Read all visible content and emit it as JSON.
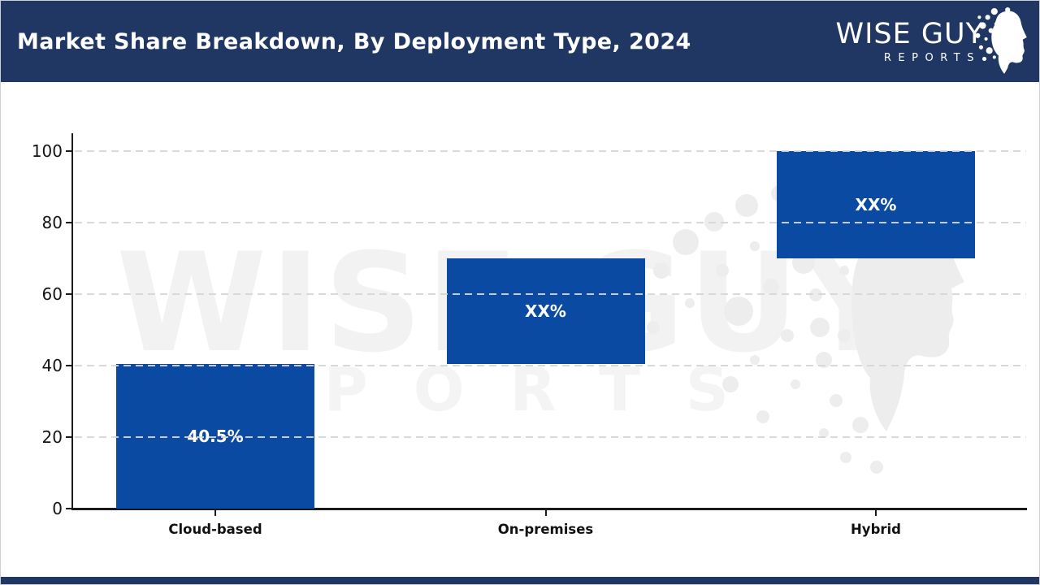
{
  "header": {
    "title": "Market Share Breakdown, By Deployment Type, 2024",
    "logo": {
      "name": "WISE GUY",
      "sub": "REPORTS"
    }
  },
  "watermark": {
    "line1": "WISE GUY",
    "line2": "REPORTS"
  },
  "chart_data": {
    "type": "bar",
    "subtype": "waterfall",
    "title": "Market Share Breakdown, By Deployment Type, 2024",
    "categories": [
      "Cloud-based",
      "On-premises",
      "Hybrid"
    ],
    "segments": [
      {
        "category": "Cloud-based",
        "start": 0,
        "end": 40.5,
        "label": "40.5%"
      },
      {
        "category": "On-premises",
        "start": 40.5,
        "end": 70,
        "label": "XX%"
      },
      {
        "category": "Hybrid",
        "start": 70,
        "end": 100,
        "label": "XX%"
      }
    ],
    "yticks": [
      0,
      20,
      40,
      60,
      80,
      100
    ],
    "ylim": [
      0,
      105
    ],
    "xlabel": "",
    "ylabel": "",
    "grid": "horizontal-dashed",
    "legend": "none",
    "bar_color": "#0b4aa2",
    "gridline_color": "#d6d6d6",
    "label_color": "#ffffff"
  },
  "colors": {
    "header_bg": "#203663",
    "footer_bg": "#203663",
    "axis": "#1a1a1a"
  }
}
